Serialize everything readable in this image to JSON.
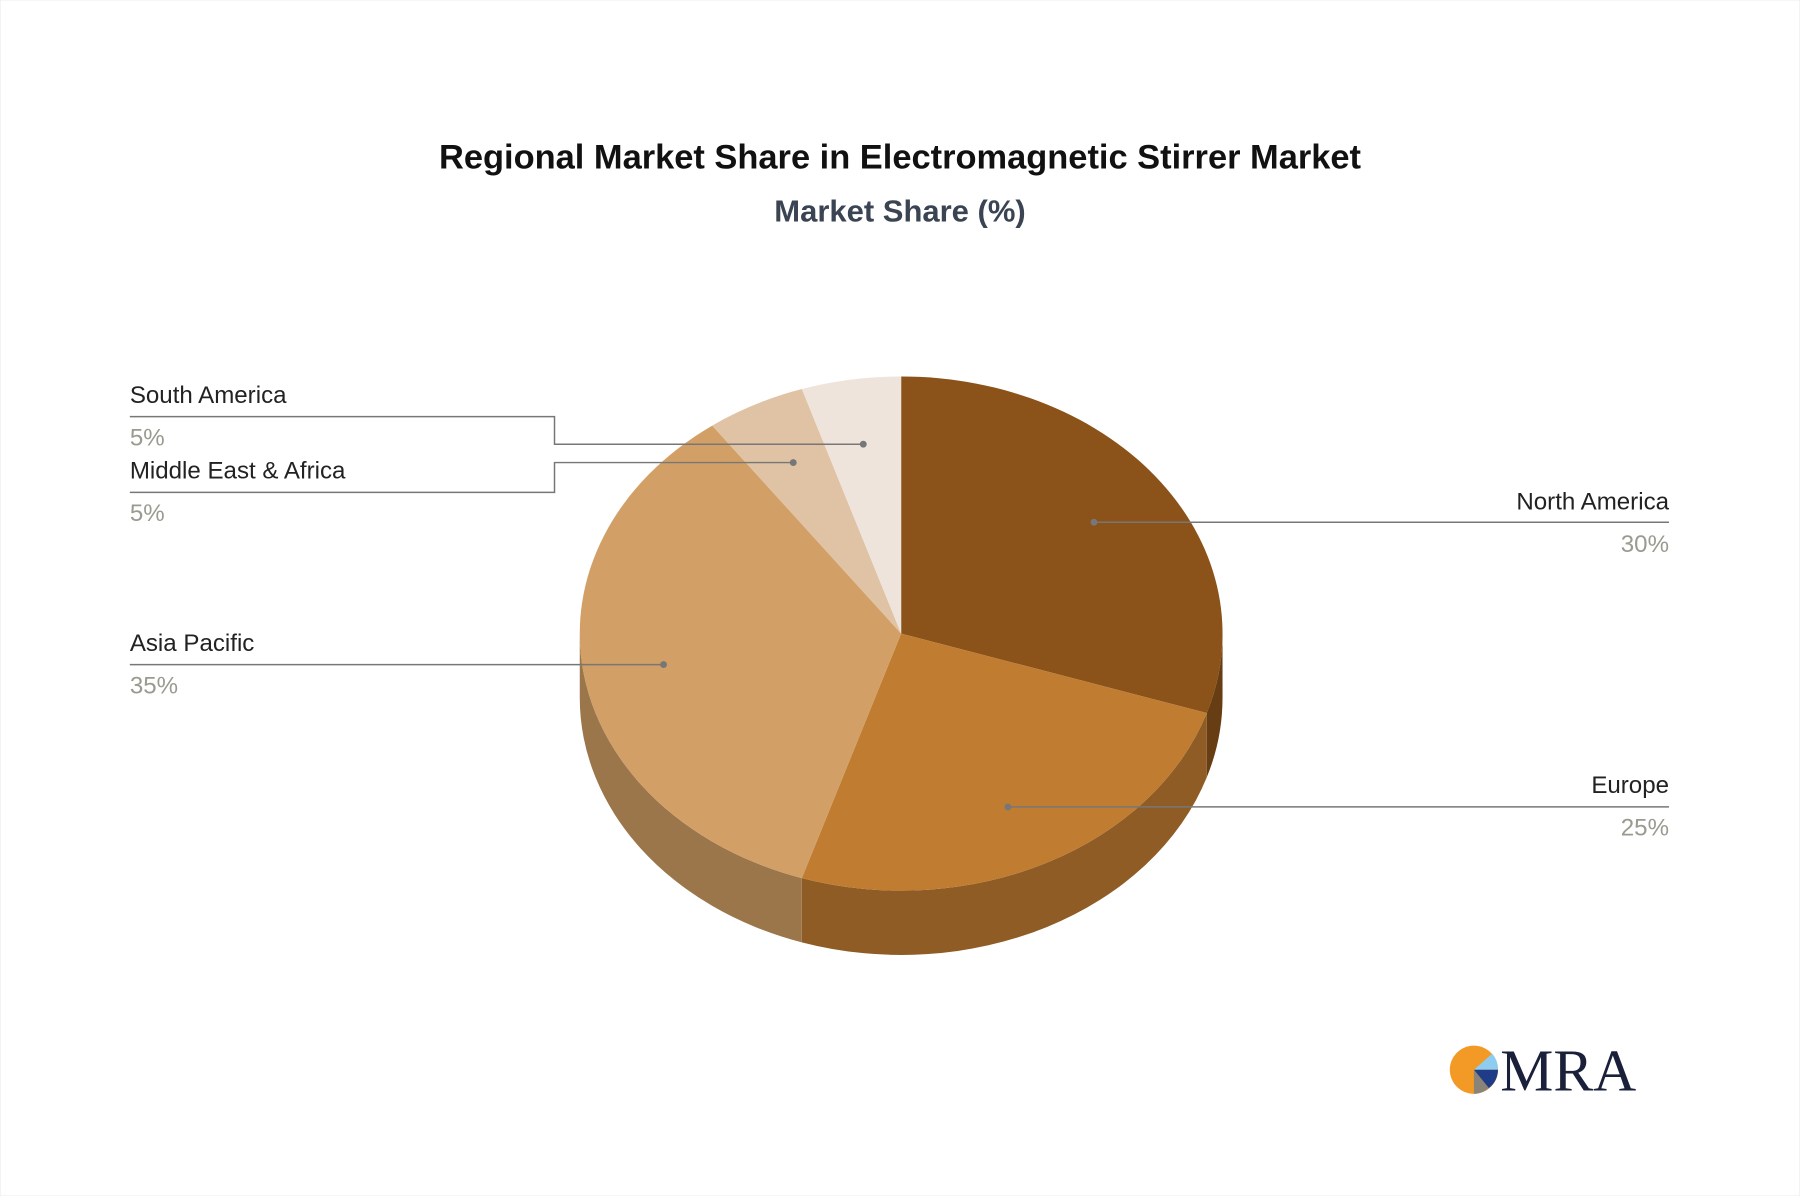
{
  "chart_data": {
    "type": "pie",
    "style": "3d",
    "title": "Regional Market Share in Electromagnetic Stirrer Market",
    "subtitle": "Market Share (%)",
    "slices": [
      {
        "name": "North America",
        "value": 30,
        "label": "30%",
        "color": "#8B5319"
      },
      {
        "name": "Europe",
        "value": 25,
        "label": "25%",
        "color": "#C07C30"
      },
      {
        "name": "Asia Pacific",
        "value": 35,
        "label": "35%",
        "color": "#D2A066"
      },
      {
        "name": "Middle East & Africa",
        "value": 5,
        "label": "5%",
        "color": "#DFC3A4"
      },
      {
        "name": "South America",
        "value": 5,
        "label": "5%",
        "color": "#EEE4DC"
      }
    ]
  },
  "logo": {
    "text": "MRA"
  }
}
